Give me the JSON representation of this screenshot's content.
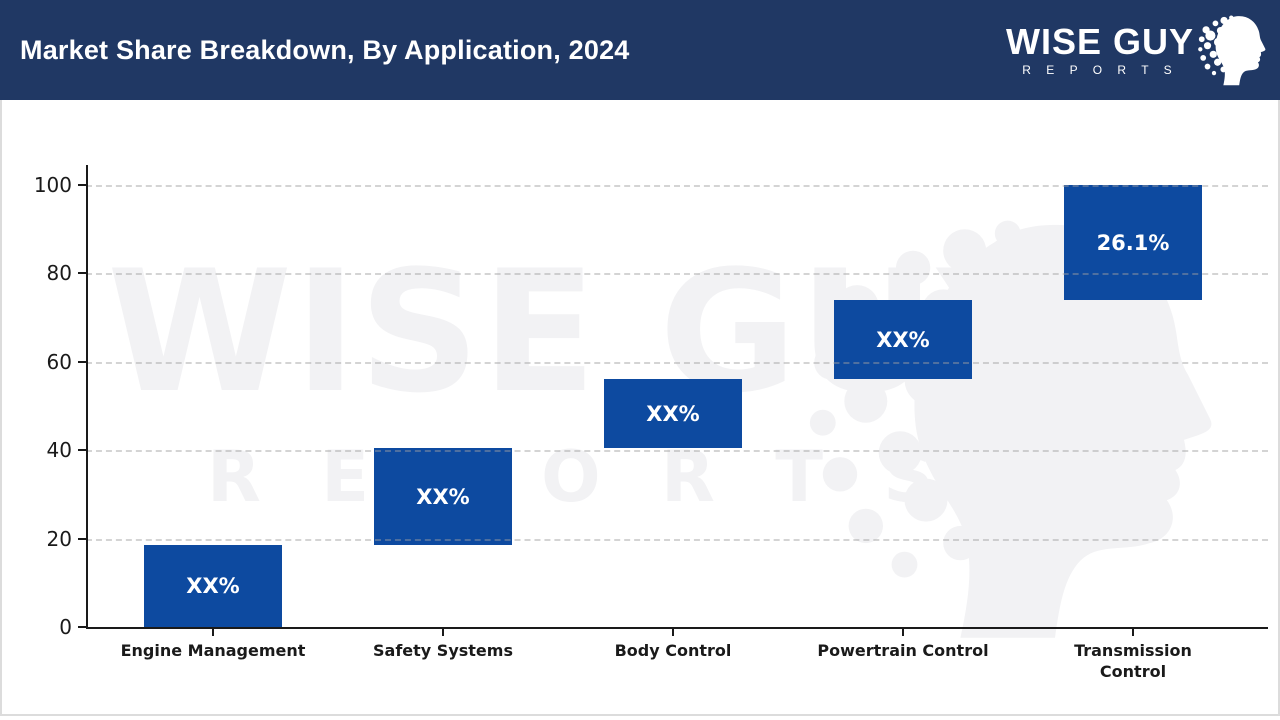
{
  "header": {
    "title": "Market Share Breakdown, By Application, 2024",
    "logo": {
      "brand": "WISE GUY",
      "sub": "R E P O R T S",
      "head_icon": "dotted-profile-head-icon"
    }
  },
  "watermark": {
    "brand": "WISE GUY",
    "sub": "R E P O R T S"
  },
  "colors": {
    "header_bg": "#203864",
    "bar": "#0d4aa0",
    "bar_label": "#ffffff",
    "gridline": "#d8d8d8",
    "axis": "#1a1a1a",
    "watermark": "#f2f2f4",
    "frame_border": "#dcdcdc"
  },
  "chart_data": {
    "type": "bar",
    "subtype": "waterfall",
    "title": "Market Share Breakdown, By Application, 2024",
    "xlabel": "",
    "ylabel": "",
    "ylim": [
      0,
      105
    ],
    "yticks": [
      0,
      20,
      40,
      60,
      80,
      100
    ],
    "grid": "horizontal-dashed",
    "legend": "none",
    "categories": [
      "Engine Management",
      "Safety Systems",
      "Body Control",
      "Powertrain Control",
      "Transmission Control"
    ],
    "segments": [
      {
        "category": "Engine Management",
        "label": "XX%",
        "start": 0,
        "end": 18.5,
        "value": 18.5
      },
      {
        "category": "Safety Systems",
        "label": "XX%",
        "start": 18.5,
        "end": 40.4,
        "value": 21.9
      },
      {
        "category": "Body Control",
        "label": "XX%",
        "start": 40.4,
        "end": 56.1,
        "value": 15.7
      },
      {
        "category": "Powertrain Control",
        "label": "XX%",
        "start": 56.1,
        "end": 73.9,
        "value": 17.8
      },
      {
        "category": "Transmission Control",
        "label": "26.1%",
        "start": 73.9,
        "end": 100,
        "value": 26.1
      }
    ]
  }
}
